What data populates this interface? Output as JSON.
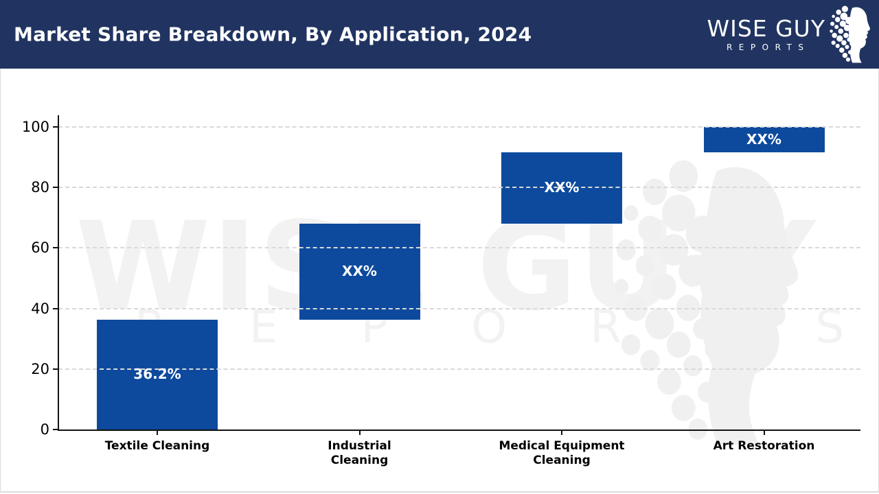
{
  "header": {
    "title": "Market Share Breakdown, By Application, 2024",
    "logo": {
      "line1": "WISE GUY",
      "line2": "REPORTS"
    }
  },
  "watermark": {
    "line1": "WISE GU·Y",
    "line2": "R E P O R T S"
  },
  "chart_data": {
    "type": "bar",
    "subtype": "waterfall",
    "title": "Market Share Breakdown, By Application, 2024",
    "categories": [
      "Textile Cleaning",
      "Industrial Cleaning",
      "Medical Equipment Cleaning",
      "Art Restoration"
    ],
    "categories_display": [
      [
        "Textile Cleaning"
      ],
      [
        "Industrial",
        "Cleaning"
      ],
      [
        "Medical Equipment",
        "Cleaning"
      ],
      [
        "Art Restoration"
      ]
    ],
    "segments": [
      {
        "category": "Textile Cleaning",
        "start": 0,
        "end": 36.2,
        "label": "36.2%"
      },
      {
        "category": "Industrial Cleaning",
        "start": 36.2,
        "end": 68.0,
        "label": "XX%"
      },
      {
        "category": "Medical Equipment Cleaning",
        "start": 68.0,
        "end": 91.5,
        "label": "XX%"
      },
      {
        "category": "Art Restoration",
        "start": 91.5,
        "end": 100,
        "label": "XX%"
      }
    ],
    "xlabel": "",
    "ylabel": "",
    "yticks": [
      0,
      20,
      40,
      60,
      80,
      100
    ],
    "ylim": [
      0,
      100
    ],
    "grid": "horizontal-dashed",
    "legend": "none",
    "bar_color": "#0d4a9d",
    "bar_label_color": "#ffffff",
    "header_color": "#213461",
    "gridline_color": "#d9d9d9"
  }
}
